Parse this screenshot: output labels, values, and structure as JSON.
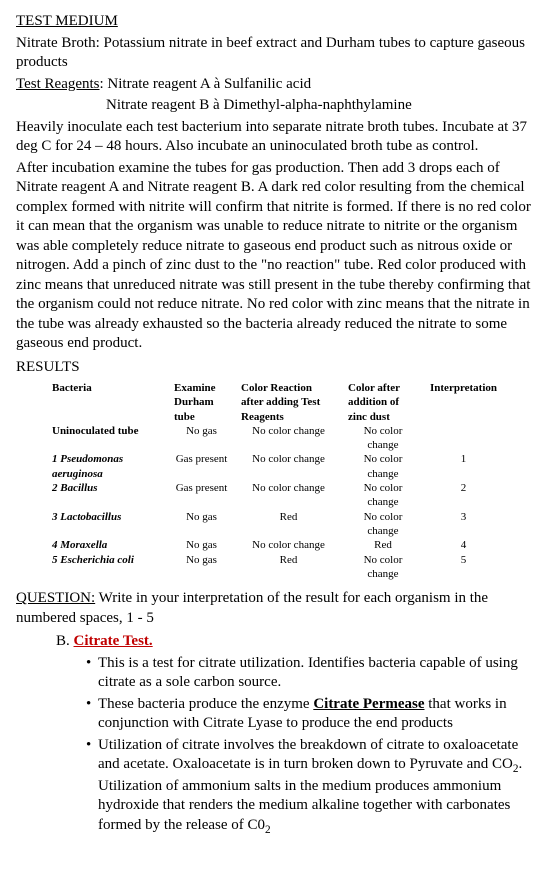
{
  "testMedium": {
    "heading": "TEST MEDIUM",
    "line1": "Nitrate Broth: Potassium nitrate in beef extract and Durham tubes to capture gaseous products",
    "reagentsLabel": "Test Reagents",
    "reagentA": ": Nitrate reagent A à Sulfanilic acid",
    "reagentB": "Nitrate reagent B à Dimethyl-alpha-naphthylamine"
  },
  "procedure": {
    "p1": "Heavily inoculate each test bacterium into separate nitrate broth tubes. Incubate at 37 deg C for 24 – 48 hours. Also incubate an uninoculated broth tube as control.",
    "p2": "After incubation examine the tubes for gas production. Then add 3 drops each of Nitrate reagent A and Nitrate reagent B. A dark red color resulting from the chemical complex formed with nitrite will confirm that nitrite is formed. If there is no red color it can mean that the organism was unable to reduce nitrate to nitrite or the organism was able completely reduce nitrate to gaseous end product such as nitrous oxide or nitrogen. Add a pinch of zinc dust to the \"no reaction\" tube. Red color produced with zinc means that unreduced nitrate was still present in the tube thereby confirming that the organism could not reduce nitrate. No red color with zinc means that the nitrate in the tube was already exhausted so the bacteria already reduced the nitrate to some gaseous end product."
  },
  "results": {
    "heading": "RESULTS",
    "headers": {
      "bacteria": "Bacteria",
      "durham": "Examine Durham tube",
      "reaction": "Color Reaction after adding Test Reagents",
      "zinc": "Color after addition of zinc dust",
      "interp": "Interpretation"
    },
    "rows": [
      {
        "bacteria": "Uninoculated tube",
        "italic": false,
        "durham": "No gas",
        "reaction": "No color change",
        "zinc": "No color change",
        "interp": ""
      },
      {
        "bacteria": "1 Pseudomonas aeruginosa",
        "italic": true,
        "durham": "Gas present",
        "reaction": "No color change",
        "zinc": "No color change",
        "interp": "1"
      },
      {
        "bacteria": "2 Bacillus",
        "italic": true,
        "durham": "Gas present",
        "reaction": "No color change",
        "zinc": "No color change",
        "interp": "2"
      },
      {
        "bacteria": "3 Lactobacillus",
        "italic": true,
        "durham": "No gas",
        "reaction": "Red",
        "zinc": "No color change",
        "interp": "3"
      },
      {
        "bacteria": "4 Moraxella",
        "italic": true,
        "durham": "No gas",
        "reaction": "No color change",
        "zinc": "Red",
        "interp": "4"
      },
      {
        "bacteria": "5 Escherichia coli",
        "italic": true,
        "durham": "No gas",
        "reaction": "Red",
        "zinc": "No color change",
        "interp": "5"
      }
    ]
  },
  "question": {
    "label": "QUESTION:",
    "text": " Write in your interpretation of the result for each organism in the numbered spaces, 1 - 5"
  },
  "citrate": {
    "prefix": "B. ",
    "title": "Citrate Test.",
    "bullets": {
      "b1": "This is a test for citrate utilization. Identifies bacteria capable of using citrate as a sole carbon source.",
      "b2a": "These bacteria produce the enzyme ",
      "b2key": "Citrate Permease",
      "b2b": " that works in conjunction with Citrate Lyase to produce the end products",
      "b3a": "Utilization of citrate involves the breakdown of citrate to oxaloacetate and acetate. Oxaloacetate is in turn broken down to Pyruvate and CO",
      "b3sub1": "2",
      "b3b": ".  Utilization of ammonium salts in the medium produces ammonium hydroxide that renders the medium alkaline together with carbonates formed by the release of C0",
      "b3sub2": "2"
    }
  }
}
